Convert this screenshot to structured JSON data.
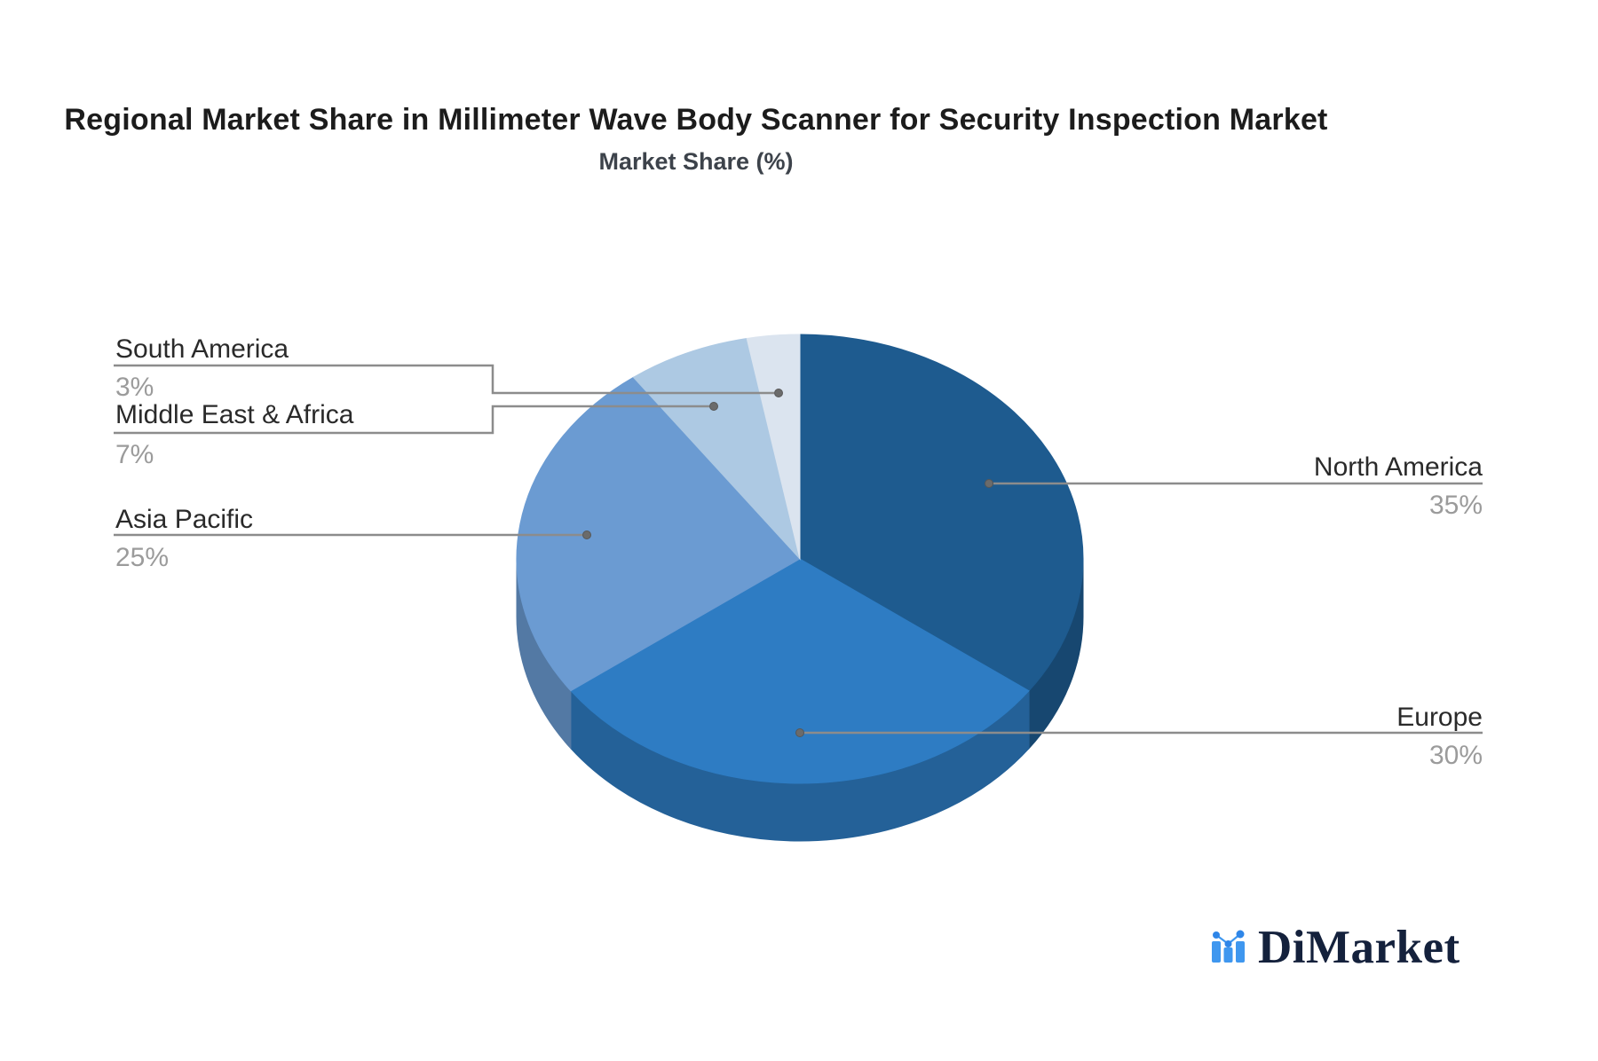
{
  "chart_data": {
    "type": "pie",
    "style": "pie-3d",
    "title": "Regional Market Share in Millimeter Wave Body Scanner for Security Inspection Market",
    "subtitle": "Market Share (%)",
    "unit": "%",
    "direction": "clockwise",
    "start_angle": "12-o-clock",
    "legend_position": "none",
    "series": [
      {
        "name": "North America",
        "value": 35,
        "label": "35%",
        "color": "#1e5b8f"
      },
      {
        "name": "Europe",
        "value": 30,
        "label": "30%",
        "color": "#2e7cc3"
      },
      {
        "name": "Asia Pacific",
        "value": 25,
        "label": "25%",
        "color": "#6b9bd2"
      },
      {
        "name": "Middle East & Africa",
        "value": 7,
        "label": "7%",
        "color": "#adc9e3"
      },
      {
        "name": "South America",
        "value": 3,
        "label": "3%",
        "color": "#dbe4ef"
      }
    ],
    "label_name_color": "#2a2a2a",
    "percent_label_color": "#9b9b9b",
    "leader_line_color": "#8c8c8c"
  },
  "logo": {
    "text": "DiMarket",
    "icon": "bar-chart-logo-icon",
    "icon_color": "#3f97ef",
    "text_color": "#14213c"
  }
}
